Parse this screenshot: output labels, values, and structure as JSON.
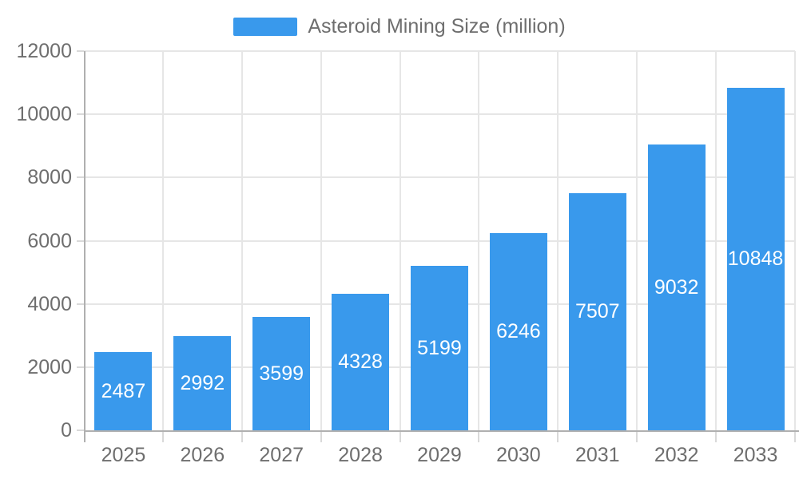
{
  "chart_data": {
    "type": "bar",
    "title": "",
    "legend_label": "Asteroid Mining Size (million)",
    "legend_position": "top-center",
    "categories": [
      "2025",
      "2026",
      "2027",
      "2028",
      "2029",
      "2030",
      "2031",
      "2032",
      "2033"
    ],
    "series": [
      {
        "name": "Asteroid Mining Size (million)",
        "values": [
          2487,
          2992,
          3599,
          4328,
          5199,
          6246,
          7507,
          9032,
          10848
        ]
      }
    ],
    "value_labels_shown": true,
    "value_label_position": "center-of-bar",
    "xlabel": "",
    "ylabel": "",
    "ylim": [
      0,
      12000
    ],
    "y_ticks": [
      0,
      2000,
      4000,
      6000,
      8000,
      10000,
      12000
    ],
    "grid": {
      "horizontal": true,
      "vertical": true
    },
    "colors": {
      "bar": "#3999EC",
      "value_label": "#FFFFFF",
      "axis_line": "#B0B0B0",
      "gridline": "#E6E6E6",
      "tick": "#D9D9D9",
      "text": "#6E6E6E",
      "background": "#FFFFFF"
    }
  }
}
